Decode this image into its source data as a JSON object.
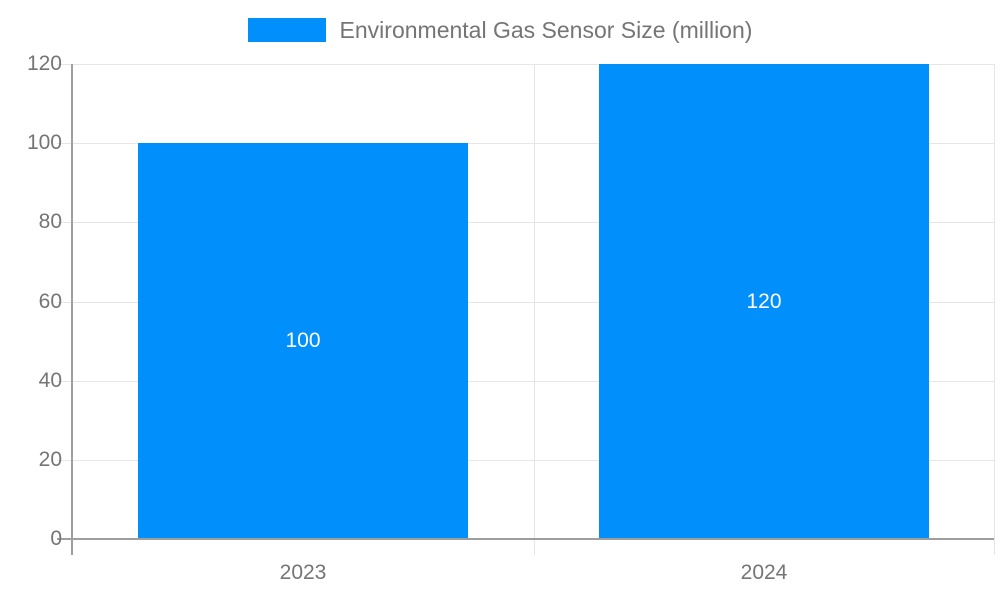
{
  "chart_data": {
    "type": "bar",
    "title": "Environmental Gas Sensor Size (million)",
    "legend": {
      "label": "Environmental Gas Sensor Size (million)",
      "position": "top-center"
    },
    "categories": [
      "2023",
      "2024"
    ],
    "series": [
      {
        "name": "Environmental Gas Sensor Size (million)",
        "values": [
          100,
          120
        ]
      }
    ],
    "data_labels": [
      "100",
      "120"
    ],
    "xlabel": "",
    "ylabel": "",
    "ylim": [
      0,
      120
    ],
    "yticks": [
      0,
      20,
      40,
      60,
      80,
      100,
      120
    ],
    "grid": true,
    "colors": {
      "bar": "#008ffb",
      "data_label": "#ffffff",
      "axis_text": "#757575",
      "axis_line": "#9e9e9e",
      "gridline": "#e6e6e6",
      "background": "#ffffff"
    }
  }
}
